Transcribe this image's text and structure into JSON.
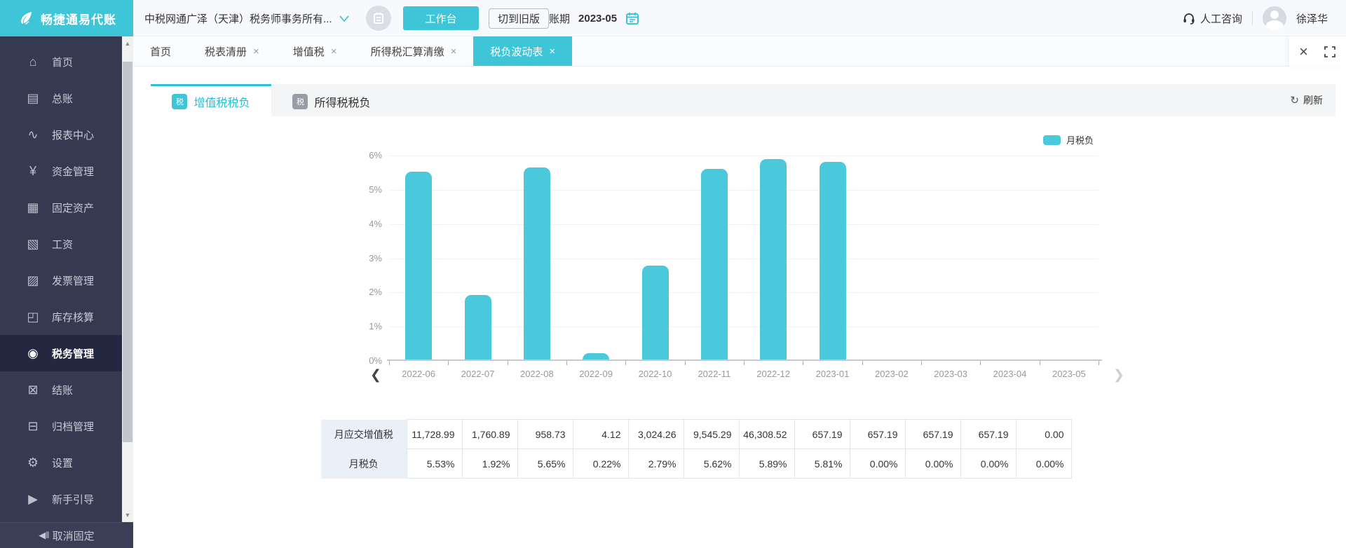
{
  "brand": {
    "name": "畅捷通易代账",
    "color": "#3EC5D8"
  },
  "topbar": {
    "company": "中税网通广泽（天津）税务师事务所有...",
    "workbench_button": "工作台",
    "switch_old_button": "切到旧版",
    "period_label": "账期",
    "period_value": "2023-05",
    "support_label": "人工咨询",
    "username": "徐泽华"
  },
  "tab_bar": {
    "tabs": [
      {
        "label": "首页",
        "closable": false,
        "active": false
      },
      {
        "label": "税表清册",
        "closable": true,
        "active": false
      },
      {
        "label": "增值税",
        "closable": true,
        "active": false
      },
      {
        "label": "所得税汇算清缴",
        "closable": true,
        "active": false
      },
      {
        "label": "税负波动表",
        "closable": true,
        "active": true
      }
    ]
  },
  "sidebar": {
    "items": [
      {
        "id": "home",
        "icon": "home-icon",
        "glyph": "⌂",
        "label": "首页",
        "active": false
      },
      {
        "id": "ledger",
        "icon": "ledger-icon",
        "glyph": "▤",
        "label": "总账",
        "active": false
      },
      {
        "id": "report-center",
        "icon": "report-chart-icon",
        "glyph": "∿",
        "label": "报表中心",
        "active": false
      },
      {
        "id": "funds",
        "icon": "money-bag-icon",
        "glyph": "¥",
        "label": "资金管理",
        "active": false
      },
      {
        "id": "fixed-assets",
        "icon": "building-icon",
        "glyph": "▦",
        "label": "固定资产",
        "active": false
      },
      {
        "id": "payroll",
        "icon": "payroll-sheet-icon",
        "glyph": "▧",
        "label": "工资",
        "active": false
      },
      {
        "id": "invoice",
        "icon": "invoice-icon",
        "glyph": "▨",
        "label": "发票管理",
        "active": false
      },
      {
        "id": "inventory",
        "icon": "warehouse-icon",
        "glyph": "◰",
        "label": "库存核算",
        "active": false
      },
      {
        "id": "tax",
        "icon": "tax-icon",
        "glyph": "◉",
        "label": "税务管理",
        "active": true
      },
      {
        "id": "closing",
        "icon": "closing-book-icon",
        "glyph": "⊠",
        "label": "结账",
        "active": false
      },
      {
        "id": "archive",
        "icon": "archive-box-icon",
        "glyph": "⊟",
        "label": "归档管理",
        "active": false
      },
      {
        "id": "settings",
        "icon": "gear-icon",
        "glyph": "⚙",
        "label": "设置",
        "active": false
      },
      {
        "id": "guide",
        "icon": "play-guide-icon",
        "glyph": "▶",
        "label": "新手引导",
        "active": false
      }
    ],
    "unpin_label": "取消固定",
    "unpin_glyph": "◀‖"
  },
  "content": {
    "subtabs": [
      {
        "label": "增值税税负",
        "icon_char": "税",
        "active": true
      },
      {
        "label": "所得税税负",
        "icon_char": "税",
        "active": false
      }
    ],
    "refresh_label": "刷新",
    "refresh_glyph": "↻"
  },
  "chart_data": {
    "type": "bar",
    "title": "",
    "categories": [
      "2022-06",
      "2022-07",
      "2022-08",
      "2022-09",
      "2022-10",
      "2022-11",
      "2022-12",
      "2023-01",
      "2023-02",
      "2023-03",
      "2023-04",
      "2023-05"
    ],
    "series": [
      {
        "name": "月税负",
        "values": [
          5.53,
          1.92,
          5.65,
          0.22,
          2.79,
          5.62,
          5.89,
          5.81,
          0,
          0,
          0,
          0
        ]
      }
    ],
    "xlabel": "",
    "ylabel": "",
    "ylim": [
      0,
      6
    ],
    "yticks": [
      "6%",
      "5%",
      "4%",
      "3%",
      "2%",
      "1%",
      "0%"
    ],
    "grid": true,
    "legend_position": "top-right",
    "bar_color": "#4BC9DC"
  },
  "table": {
    "rows": [
      {
        "label": "月应交增值税",
        "values": [
          "11,728.99",
          "1,760.89",
          "958.73",
          "4.12",
          "3,024.26",
          "9,545.29",
          "46,308.52",
          "657.19",
          "657.19",
          "657.19",
          "657.19",
          "0.00"
        ]
      },
      {
        "label": "月税负",
        "values": [
          "5.53%",
          "1.92%",
          "5.65%",
          "0.22%",
          "2.79%",
          "5.62%",
          "5.89%",
          "5.81%",
          "0.00%",
          "0.00%",
          "0.00%",
          "0.00%"
        ]
      }
    ]
  }
}
